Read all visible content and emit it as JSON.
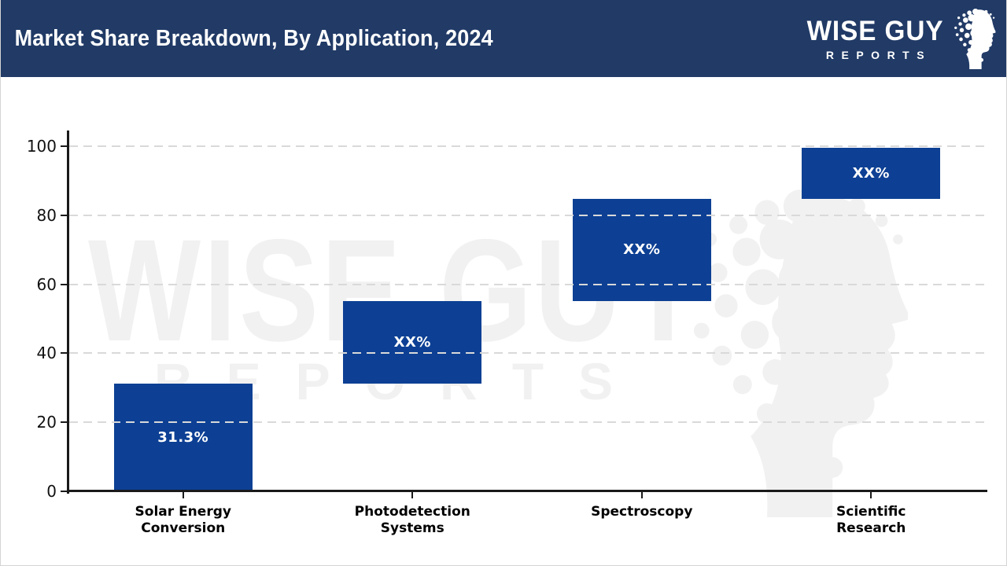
{
  "header": {
    "title": "Market Share Breakdown, By Application, 2024",
    "logo": {
      "line1": "WISE GUY",
      "line2": "REPORTS"
    }
  },
  "watermark": {
    "line1": "WISE GUY",
    "line2": "REPORTS"
  },
  "colors": {
    "header_bg": "#213a66",
    "bar_blue": "#0d4094",
    "grid_gray": "#d9d9d9",
    "axis_black": "#1a1a1a",
    "watermark_gray": "#f1f1f1"
  },
  "chart_data": {
    "type": "bar",
    "subtype": "waterfall",
    "title": "Market Share Breakdown, By Application, 2024",
    "xlabel": "",
    "ylabel": "",
    "ylim": [
      0,
      105
    ],
    "yticks": [
      0,
      20,
      40,
      60,
      80,
      100
    ],
    "grid": "horizontal-dashed-above-bars",
    "legend": "none",
    "bar_color": "#0d4094",
    "value_label_color": "#ffffff",
    "categories": [
      "Solar Energy Conversion",
      "Photodetection Systems",
      "Spectroscopy",
      "Scientific Research"
    ],
    "segments": [
      {
        "name": "Solar Energy Conversion",
        "lines": [
          "Solar Energy",
          "Conversion"
        ],
        "start": 0,
        "end": 31.3,
        "label": "31.3%"
      },
      {
        "name": "Photodetection Systems",
        "lines": [
          "Photodetection",
          "Systems"
        ],
        "start": 31.3,
        "end": 55.2,
        "label": "XX%"
      },
      {
        "name": "Spectroscopy",
        "lines": [
          "Spectroscopy"
        ],
        "start": 55.2,
        "end": 84.7,
        "label": "XX%"
      },
      {
        "name": "Scientific Research",
        "lines": [
          "Scientific",
          "Research"
        ],
        "start": 84.7,
        "end": 99.6,
        "label": "XX%"
      }
    ]
  }
}
